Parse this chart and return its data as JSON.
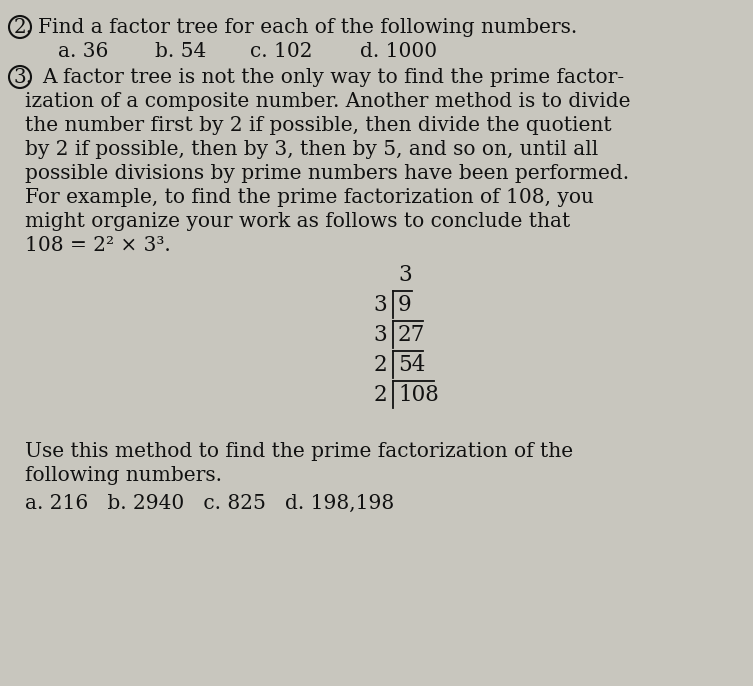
{
  "bg_color": "#c8c6be",
  "text_color": "#111111",
  "title_q2": "Find a factor tree for each of the following numbers.",
  "q2_num": "2.",
  "q2_sub_items": [
    [
      "a. 36",
      0.08
    ],
    [
      "b. 54",
      0.18
    ],
    [
      "c. 102",
      0.33
    ],
    [
      "d. 1000",
      0.5
    ]
  ],
  "q3_num": "3.",
  "q3_para_lines": [
    "A factor tree is not the only way to find the prime factor-",
    "ization of a composite number. Another method is to divide",
    "the number first by 2 if possible, then divide the quotient",
    "by 2 if possible, then by 3, then by 5, and so on, until all",
    "possible divisions by prime numbers have been performed.",
    "For example, to find the prime factorization of 108, you",
    "might organize your work as follows to conclude that"
  ],
  "q3_equation": "108 = 2² × 3³.",
  "division_rows": [
    {
      "divisor": "",
      "dividend": "3",
      "show_bar": false
    },
    {
      "divisor": "3",
      "dividend": "9",
      "show_bar": true
    },
    {
      "divisor": "3",
      "dividend": "27",
      "show_bar": true
    },
    {
      "divisor": "2",
      "dividend": "54",
      "show_bar": true
    },
    {
      "divisor": "2",
      "dividend": "108",
      "show_bar": true
    }
  ],
  "footer_line1": "Use this method to find the prime factorization of the",
  "footer_line2": "following numbers.",
  "footer_sub": "a. 216   b. 2940   c. 825   d. 198,198",
  "font_size_body": 14.5,
  "font_size_division": 15.5,
  "font_size_small": 13.5
}
